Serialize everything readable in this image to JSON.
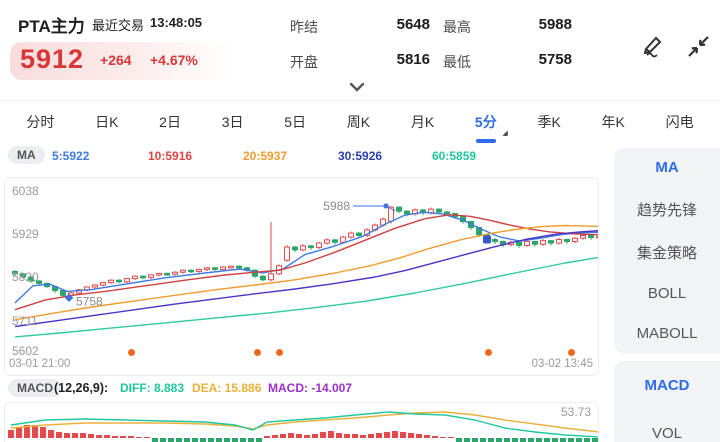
{
  "header": {
    "symbol": "PTA主力",
    "last_trade_label": "最近交易",
    "last_trade_time": "13:48:05",
    "price": "5912",
    "change": "+264",
    "change_pct": "+4.67%",
    "stats": [
      {
        "label": "昨结",
        "value": "5648"
      },
      {
        "label": "最高",
        "value": "5988"
      },
      {
        "label": "开盘",
        "value": "5816"
      },
      {
        "label": "最低",
        "value": "5758"
      }
    ],
    "up_color": "#d93636"
  },
  "tabs": {
    "selected_index": 7,
    "items": [
      {
        "label": "分时"
      },
      {
        "label": "日K"
      },
      {
        "label": "2日"
      },
      {
        "label": "3日"
      },
      {
        "label": "5日"
      },
      {
        "label": "周K"
      },
      {
        "label": "月K"
      },
      {
        "label": "5分"
      },
      {
        "label": "季K"
      },
      {
        "label": "年K"
      },
      {
        "label": "闪电"
      }
    ]
  },
  "ma_legend": {
    "pill": "MA",
    "items": [
      {
        "text": "5:5922",
        "color": "#3f7be0"
      },
      {
        "text": "10:5916",
        "color": "#dd4343"
      },
      {
        "text": "20:5937",
        "color": "#f09c2e"
      },
      {
        "text": "30:5926",
        "color": "#2d3fb0"
      },
      {
        "text": "60:5859",
        "color": "#21c79c"
      }
    ]
  },
  "chart": {
    "type": "candlestick",
    "price_top": 6038,
    "price_bottom": 5602,
    "y_ticks": [
      "6038",
      "5929",
      "5820",
      "5711",
      "5602"
    ],
    "x_start_label": "03-01 21:00",
    "x_end_label": "03-02 13:45",
    "session_dots_x": [
      126,
      252,
      274,
      483,
      566
    ],
    "up_color": "#e14b4b",
    "down_color": "#2ba568",
    "annotations": {
      "high": {
        "label": "5988",
        "price": 5988,
        "x": 381,
        "color": "#3f6fe0",
        "text_color": "#8a8a8a"
      },
      "low": {
        "label": "5758",
        "price": 5758,
        "x": 64,
        "color": "#3f6fe0",
        "text_color": "#8a8a8a"
      },
      "signal": {
        "x": 482,
        "price": 5904,
        "color": "#3a57c9"
      }
    },
    "candles": [
      [
        5824,
        5827,
        5812,
        5818
      ],
      [
        5818,
        5820,
        5806,
        5810
      ],
      [
        5810,
        5812,
        5796,
        5800
      ],
      [
        5800,
        5802,
        5790,
        5794
      ],
      [
        5794,
        5796,
        5782,
        5786
      ],
      [
        5786,
        5788,
        5770,
        5776
      ],
      [
        5776,
        5778,
        5758,
        5764
      ],
      [
        5764,
        5773,
        5758,
        5770
      ],
      [
        5770,
        5780,
        5766,
        5778
      ],
      [
        5778,
        5787,
        5774,
        5785
      ],
      [
        5785,
        5792,
        5781,
        5790
      ],
      [
        5790,
        5798,
        5786,
        5796
      ],
      [
        5796,
        5804,
        5792,
        5802
      ],
      [
        5802,
        5804,
        5794,
        5798
      ],
      [
        5798,
        5808,
        5794,
        5806
      ],
      [
        5806,
        5814,
        5802,
        5812
      ],
      [
        5812,
        5814,
        5805,
        5809
      ],
      [
        5809,
        5817,
        5805,
        5815
      ],
      [
        5815,
        5821,
        5811,
        5819
      ],
      [
        5819,
        5821,
        5813,
        5817
      ],
      [
        5817,
        5824,
        5813,
        5822
      ],
      [
        5822,
        5829,
        5818,
        5827
      ],
      [
        5827,
        5829,
        5820,
        5824
      ],
      [
        5824,
        5831,
        5820,
        5829
      ],
      [
        5829,
        5835,
        5825,
        5833
      ],
      [
        5833,
        5835,
        5825,
        5829
      ],
      [
        5829,
        5837,
        5825,
        5835
      ],
      [
        5835,
        5839,
        5831,
        5837
      ],
      [
        5837,
        5839,
        5829,
        5833
      ],
      [
        5833,
        5835,
        5823,
        5827
      ],
      [
        5827,
        5829,
        5808,
        5812
      ],
      [
        5812,
        5814,
        5799,
        5803
      ],
      [
        5803,
        5948,
        5799,
        5818
      ],
      [
        5818,
        5842,
        5814,
        5838
      ],
      [
        5852,
        5890,
        5848,
        5885
      ],
      [
        5885,
        5888,
        5872,
        5878
      ],
      [
        5878,
        5892,
        5874,
        5888
      ],
      [
        5888,
        5890,
        5878,
        5884
      ],
      [
        5884,
        5899,
        5880,
        5895
      ],
      [
        5895,
        5907,
        5891,
        5903
      ],
      [
        5903,
        5905,
        5891,
        5897
      ],
      [
        5897,
        5914,
        5893,
        5910
      ],
      [
        5910,
        5924,
        5906,
        5920
      ],
      [
        5920,
        5922,
        5908,
        5914
      ],
      [
        5914,
        5932,
        5910,
        5928
      ],
      [
        5928,
        5944,
        5924,
        5940
      ],
      [
        5940,
        5959,
        5936,
        5955
      ],
      [
        5950,
        5988,
        5944,
        5985
      ],
      [
        5985,
        5987,
        5970,
        5975
      ],
      [
        5975,
        5977,
        5962,
        5968
      ],
      [
        5968,
        5982,
        5964,
        5978
      ],
      [
        5978,
        5980,
        5965,
        5971
      ],
      [
        5971,
        5984,
        5967,
        5980
      ],
      [
        5980,
        5982,
        5968,
        5973
      ],
      [
        5973,
        5975,
        5963,
        5969
      ],
      [
        5969,
        5971,
        5956,
        5961
      ],
      [
        5961,
        5963,
        5944,
        5949
      ],
      [
        5949,
        5951,
        5928,
        5934
      ],
      [
        5934,
        5936,
        5910,
        5916
      ],
      [
        5916,
        5918,
        5899,
        5904
      ],
      [
        5904,
        5908,
        5893,
        5899
      ],
      [
        5899,
        5901,
        5885,
        5891
      ],
      [
        5891,
        5901,
        5887,
        5897
      ],
      [
        5897,
        5899,
        5883,
        5889
      ],
      [
        5889,
        5903,
        5885,
        5899
      ],
      [
        5899,
        5901,
        5886,
        5892
      ],
      [
        5892,
        5905,
        5888,
        5901
      ],
      [
        5901,
        5903,
        5889,
        5895
      ],
      [
        5895,
        5908,
        5891,
        5904
      ],
      [
        5904,
        5906,
        5893,
        5899
      ],
      [
        5899,
        5911,
        5895,
        5907
      ],
      [
        5907,
        5918,
        5903,
        5914
      ],
      [
        5914,
        5916,
        5903,
        5909
      ],
      [
        5909,
        5916,
        5905,
        5912
      ]
    ],
    "ma_lines": [
      {
        "name": "MA5",
        "color": "#3f7be0",
        "points": [
          [
            10,
            5745
          ],
          [
            28,
            5788
          ],
          [
            45,
            5792
          ],
          [
            62,
            5774
          ],
          [
            85,
            5778
          ],
          [
            120,
            5792
          ],
          [
            160,
            5808
          ],
          [
            200,
            5820
          ],
          [
            235,
            5830
          ],
          [
            258,
            5820
          ],
          [
            278,
            5830
          ],
          [
            300,
            5866
          ],
          [
            330,
            5888
          ],
          [
            358,
            5912
          ],
          [
            380,
            5942
          ],
          [
            400,
            5965
          ],
          [
            418,
            5972
          ],
          [
            438,
            5968
          ],
          [
            458,
            5952
          ],
          [
            478,
            5928
          ],
          [
            495,
            5910
          ],
          [
            515,
            5900
          ],
          [
            535,
            5907
          ],
          [
            558,
            5917
          ],
          [
            580,
            5921
          ],
          [
            594,
            5922
          ]
        ]
      },
      {
        "name": "MA10",
        "color": "#cf4040",
        "points": [
          [
            10,
            5728
          ],
          [
            40,
            5752
          ],
          [
            70,
            5765
          ],
          [
            100,
            5774
          ],
          [
            140,
            5788
          ],
          [
            180,
            5802
          ],
          [
            220,
            5815
          ],
          [
            250,
            5822
          ],
          [
            275,
            5827
          ],
          [
            300,
            5845
          ],
          [
            330,
            5872
          ],
          [
            360,
            5902
          ],
          [
            390,
            5932
          ],
          [
            420,
            5956
          ],
          [
            445,
            5966
          ],
          [
            465,
            5962
          ],
          [
            485,
            5952
          ],
          [
            505,
            5940
          ],
          [
            525,
            5930
          ],
          [
            545,
            5923
          ],
          [
            570,
            5918
          ],
          [
            594,
            5916
          ]
        ]
      },
      {
        "name": "MA20",
        "color": "#f09c2e",
        "points": [
          [
            10,
            5703
          ],
          [
            50,
            5720
          ],
          [
            90,
            5736
          ],
          [
            130,
            5750
          ],
          [
            170,
            5764
          ],
          [
            210,
            5778
          ],
          [
            250,
            5790
          ],
          [
            290,
            5803
          ],
          [
            330,
            5820
          ],
          [
            365,
            5838
          ],
          [
            395,
            5858
          ],
          [
            425,
            5882
          ],
          [
            455,
            5903
          ],
          [
            485,
            5919
          ],
          [
            510,
            5929
          ],
          [
            535,
            5936
          ],
          [
            560,
            5939
          ],
          [
            594,
            5937
          ]
        ]
      },
      {
        "name": "MA30",
        "color": "#4a34c8",
        "points": [
          [
            10,
            5686
          ],
          [
            50,
            5700
          ],
          [
            90,
            5714
          ],
          [
            130,
            5728
          ],
          [
            170,
            5742
          ],
          [
            210,
            5755
          ],
          [
            250,
            5768
          ],
          [
            290,
            5780
          ],
          [
            330,
            5794
          ],
          [
            370,
            5810
          ],
          [
            400,
            5826
          ],
          [
            430,
            5846
          ],
          [
            460,
            5866
          ],
          [
            490,
            5886
          ],
          [
            520,
            5904
          ],
          [
            550,
            5917
          ],
          [
            575,
            5923
          ],
          [
            594,
            5926
          ]
        ]
      },
      {
        "name": "MA60",
        "color": "#2fc9a0",
        "points": [
          [
            10,
            5660
          ],
          [
            60,
            5671
          ],
          [
            110,
            5683
          ],
          [
            160,
            5695
          ],
          [
            210,
            5707
          ],
          [
            260,
            5719
          ],
          [
            310,
            5733
          ],
          [
            360,
            5749
          ],
          [
            410,
            5770
          ],
          [
            460,
            5794
          ],
          [
            510,
            5820
          ],
          [
            560,
            5845
          ],
          [
            594,
            5859
          ]
        ]
      }
    ]
  },
  "macd": {
    "pill": "MACD",
    "params": "(12,26,9):",
    "diff_label": "DIFF: 8.883",
    "dea_label": "DEA: 15.886",
    "macd_label": "MACD: -14.007",
    "diff_color": "#21c79c",
    "dea_color": "#e8b13c",
    "macd_color": "#9b30c9",
    "peak_value": "53.73",
    "baseline_y": 35,
    "bar_up_color": "#e14b4b",
    "bar_down_color": "#2ba568",
    "bars": [
      [
        6,
        8
      ],
      [
        14,
        11
      ],
      [
        22,
        13
      ],
      [
        30,
        13
      ],
      [
        38,
        11
      ],
      [
        46,
        8
      ],
      [
        54,
        6
      ],
      [
        62,
        5
      ],
      [
        70,
        5
      ],
      [
        78,
        5
      ],
      [
        86,
        4
      ],
      [
        94,
        3
      ],
      [
        102,
        3
      ],
      [
        110,
        2
      ],
      [
        118,
        2
      ],
      [
        126,
        2
      ],
      [
        134,
        1
      ],
      [
        142,
        1
      ],
      [
        150,
        -3
      ],
      [
        158,
        -4
      ],
      [
        166,
        -4
      ],
      [
        174,
        -5
      ],
      [
        182,
        -5
      ],
      [
        190,
        -5
      ],
      [
        198,
        -5
      ],
      [
        206,
        -4
      ],
      [
        214,
        -4
      ],
      [
        222,
        -4
      ],
      [
        230,
        -4
      ],
      [
        238,
        -4
      ],
      [
        246,
        -3
      ],
      [
        254,
        -3
      ],
      [
        262,
        2
      ],
      [
        270,
        3
      ],
      [
        278,
        4
      ],
      [
        286,
        5
      ],
      [
        294,
        4
      ],
      [
        302,
        3
      ],
      [
        310,
        4
      ],
      [
        318,
        6
      ],
      [
        326,
        7
      ],
      [
        334,
        5
      ],
      [
        342,
        4
      ],
      [
        350,
        4
      ],
      [
        358,
        3
      ],
      [
        366,
        4
      ],
      [
        374,
        5
      ],
      [
        382,
        6
      ],
      [
        390,
        7
      ],
      [
        398,
        6
      ],
      [
        406,
        5
      ],
      [
        414,
        4
      ],
      [
        422,
        3
      ],
      [
        430,
        2
      ],
      [
        438,
        1
      ],
      [
        446,
        1
      ],
      [
        454,
        -3
      ],
      [
        462,
        -4
      ],
      [
        470,
        -4
      ],
      [
        478,
        -4
      ],
      [
        486,
        -4
      ],
      [
        494,
        -4
      ],
      [
        502,
        -4
      ],
      [
        510,
        -4
      ],
      [
        518,
        -4
      ],
      [
        526,
        -4
      ],
      [
        534,
        -4
      ],
      [
        542,
        -4
      ],
      [
        550,
        -4
      ],
      [
        558,
        -4
      ],
      [
        566,
        -4
      ],
      [
        574,
        -4
      ],
      [
        582,
        -4
      ],
      [
        590,
        -3
      ]
    ],
    "diff_points": [
      [
        6,
        22
      ],
      [
        40,
        17
      ],
      [
        80,
        16
      ],
      [
        120,
        17
      ],
      [
        160,
        18
      ],
      [
        200,
        19
      ],
      [
        230,
        22
      ],
      [
        248,
        27
      ],
      [
        262,
        19
      ],
      [
        290,
        17
      ],
      [
        320,
        15
      ],
      [
        350,
        12
      ],
      [
        384,
        9
      ],
      [
        410,
        11
      ],
      [
        440,
        12
      ],
      [
        470,
        17
      ],
      [
        500,
        25
      ],
      [
        530,
        29
      ],
      [
        560,
        32
      ],
      [
        594,
        34
      ]
    ],
    "dea_points": [
      [
        6,
        25
      ],
      [
        40,
        22
      ],
      [
        80,
        20
      ],
      [
        120,
        20
      ],
      [
        160,
        20
      ],
      [
        200,
        21
      ],
      [
        230,
        23
      ],
      [
        248,
        26
      ],
      [
        262,
        22
      ],
      [
        290,
        19
      ],
      [
        320,
        17
      ],
      [
        350,
        15
      ],
      [
        384,
        12
      ],
      [
        410,
        10
      ],
      [
        440,
        9
      ],
      [
        470,
        12
      ],
      [
        500,
        17
      ],
      [
        530,
        21
      ],
      [
        560,
        25
      ],
      [
        594,
        29
      ]
    ]
  },
  "sidebar": {
    "groups": [
      {
        "items": [
          {
            "label": "MA",
            "selected": true
          },
          {
            "label": "趋势先锋",
            "selected": false
          },
          {
            "label": "集金策略",
            "selected": false
          },
          {
            "label": "BOLL",
            "selected": false
          },
          {
            "label": "MABOLL",
            "selected": false
          }
        ]
      },
      {
        "items": [
          {
            "label": "MACD",
            "selected": true
          },
          {
            "label": "VOL",
            "selected": false
          }
        ]
      }
    ],
    "selected_color": "#2e6be6"
  }
}
